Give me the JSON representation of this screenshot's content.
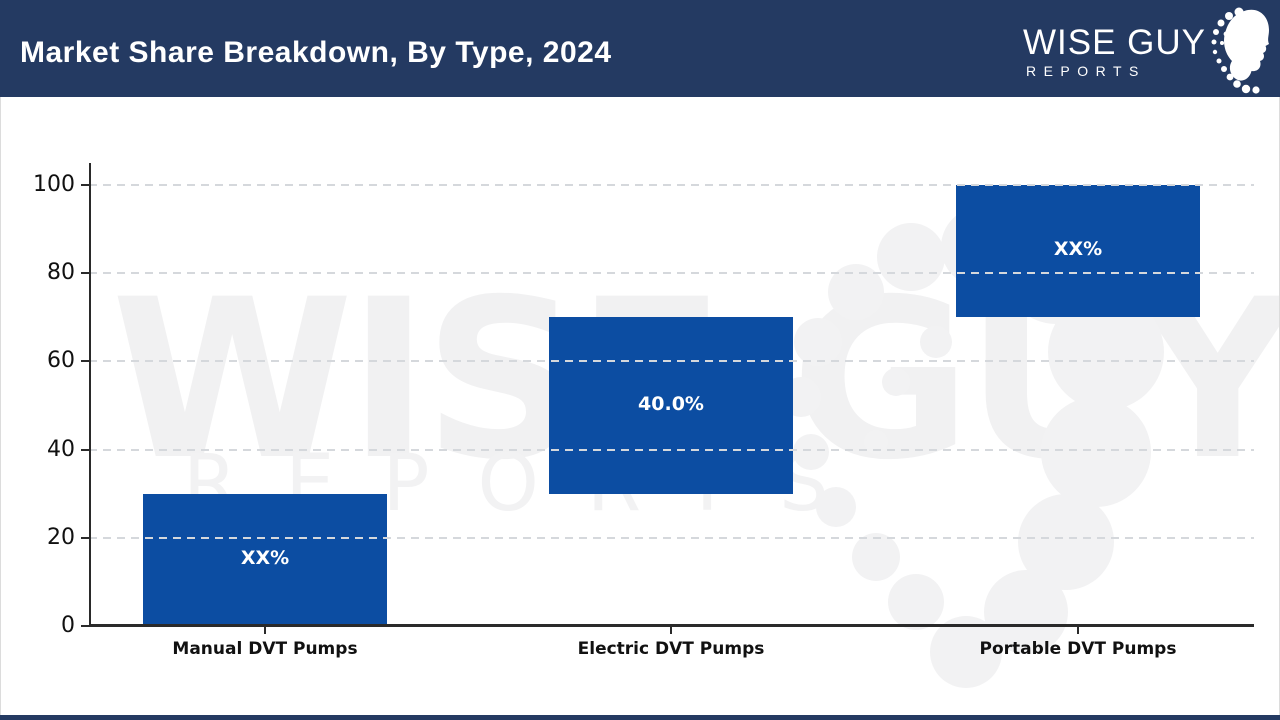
{
  "header": {
    "title": "Market Share Breakdown, By Type, 2024",
    "background_color": "#243A62",
    "logo": {
      "wordmark": "WISE GUY",
      "subtitle": "REPORTS"
    }
  },
  "watermark": {
    "wordmark": "WISE GUY",
    "subtitle": "REPORTS"
  },
  "footer": {
    "background_color": "#243A62"
  },
  "chart_data": {
    "type": "bar",
    "subtype": "floating-segment-columns",
    "title": "Market Share Breakdown, By Type, 2024",
    "categories": [
      "Manual DVT Pumps",
      "Electric DVT Pumps",
      "Portable DVT Pumps"
    ],
    "series": [
      {
        "name": "Market Share (%)",
        "segments": [
          {
            "category": "Manual DVT Pumps",
            "from": 0,
            "to": 30,
            "label": "XX%"
          },
          {
            "category": "Electric DVT Pumps",
            "from": 30,
            "to": 70,
            "label": "40.0%"
          },
          {
            "category": "Portable DVT Pumps",
            "from": 70,
            "to": 100,
            "label": "XX%"
          }
        ]
      }
    ],
    "ylim": [
      0,
      100
    ],
    "yticks": [
      "0",
      "20",
      "40",
      "60",
      "80",
      "100"
    ],
    "grid": {
      "horizontal": true,
      "style": "dashed",
      "color": "#D5D8DC",
      "above_bars": true
    },
    "bar_color": "#0C4DA2",
    "bar_label_color": "#FFFFFF",
    "axis_color": "#2a2a2a",
    "xlabel": "",
    "ylabel": "",
    "legend": "none"
  }
}
